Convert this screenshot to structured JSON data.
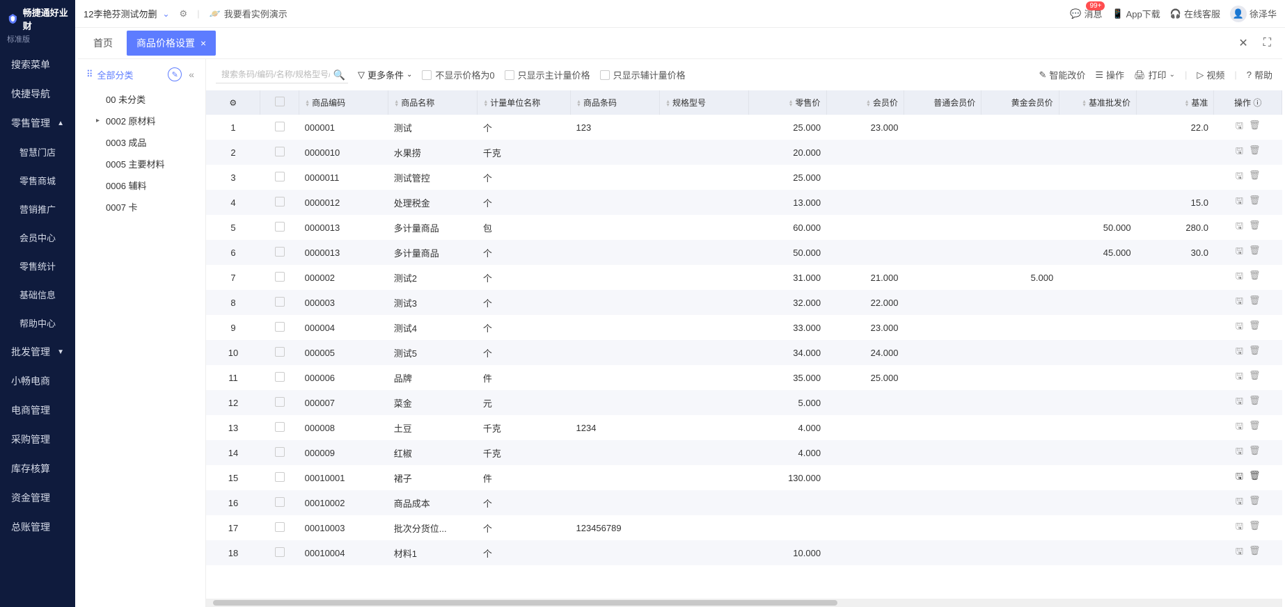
{
  "brand": {
    "name": "畅捷通好业财",
    "edition": "标准版"
  },
  "org": {
    "name": "12李艳芬测试勿删",
    "demo": "我要看实例演示"
  },
  "topActions": {
    "msg": "消息",
    "msgBadge": "99+",
    "app": "App下载",
    "service": "在线客服",
    "user": "徐泽华"
  },
  "sidebar": [
    {
      "label": "搜索菜单"
    },
    {
      "label": "快捷导航"
    },
    {
      "label": "零售管理",
      "caret": "▲"
    },
    {
      "label": "智慧门店",
      "indent": true
    },
    {
      "label": "零售商城",
      "indent": true
    },
    {
      "label": "营销推广",
      "indent": true
    },
    {
      "label": "会员中心",
      "indent": true
    },
    {
      "label": "零售统计",
      "indent": true
    },
    {
      "label": "基础信息",
      "indent": true
    },
    {
      "label": "帮助中心",
      "indent": true
    },
    {
      "label": "批发管理",
      "caret": "▼"
    },
    {
      "label": "小畅电商"
    },
    {
      "label": "电商管理"
    },
    {
      "label": "采购管理"
    },
    {
      "label": "库存核算"
    },
    {
      "label": "资金管理"
    },
    {
      "label": "总账管理"
    }
  ],
  "tabs": {
    "home": "首页",
    "active": "商品价格设置"
  },
  "catPanel": {
    "title": "全部分类",
    "items": [
      {
        "label": "00 未分类"
      },
      {
        "label": "0002 原材料",
        "expandable": true
      },
      {
        "label": "0003 成品"
      },
      {
        "label": "0005 主要材料"
      },
      {
        "label": "0006 辅料"
      },
      {
        "label": "0007 卡"
      }
    ]
  },
  "toolbar": {
    "searchPlaceholder": "搜索条码/编码/名称/规格型号/别名",
    "moreCond": "更多条件",
    "chk1": "不显示价格为0",
    "chk2": "只显示主计量价格",
    "chk3": "只显示辅计量价格",
    "smartPrice": "智能改价",
    "operate": "操作",
    "print": "打印",
    "video": "视频",
    "help": "帮助"
  },
  "columns": {
    "code": "商品编码",
    "name": "商品名称",
    "unit": "计量单位名称",
    "barcode": "商品条码",
    "spec": "规格型号",
    "retail": "零售价",
    "member": "会员价",
    "normalMember": "普通会员价",
    "goldMember": "黄金会员价",
    "baseWholesale": "基准批发价",
    "base": "基准",
    "ops": "操作"
  },
  "rows": [
    {
      "idx": 1,
      "code": "000001",
      "name": "测试",
      "unit": "个",
      "barcode": "123",
      "retail": "25.000",
      "member": "23.000",
      "gold": "",
      "baseW": "",
      "base": "22.0"
    },
    {
      "idx": 2,
      "code": "0000010",
      "name": "水果捞",
      "unit": "千克",
      "barcode": "",
      "retail": "20.000",
      "member": "",
      "gold": "",
      "baseW": "",
      "base": ""
    },
    {
      "idx": 3,
      "code": "0000011",
      "name": "测试管控",
      "unit": "个",
      "barcode": "",
      "retail": "25.000",
      "member": "",
      "gold": "",
      "baseW": "",
      "base": ""
    },
    {
      "idx": 4,
      "code": "0000012",
      "name": "处理税金",
      "unit": "个",
      "barcode": "",
      "retail": "13.000",
      "member": "",
      "gold": "",
      "baseW": "",
      "base": "15.0"
    },
    {
      "idx": 5,
      "code": "0000013",
      "name": "多计量商品",
      "unit": "包",
      "barcode": "",
      "retail": "60.000",
      "member": "",
      "gold": "",
      "baseW": "50.000",
      "base": "280.0"
    },
    {
      "idx": 6,
      "code": "0000013",
      "name": "多计量商品",
      "unit": "个",
      "barcode": "",
      "retail": "50.000",
      "member": "",
      "gold": "",
      "baseW": "45.000",
      "base": "30.0"
    },
    {
      "idx": 7,
      "code": "000002",
      "name": "测试2",
      "unit": "个",
      "barcode": "",
      "retail": "31.000",
      "member": "21.000",
      "gold": "5.000",
      "baseW": "",
      "base": ""
    },
    {
      "idx": 8,
      "code": "000003",
      "name": "测试3",
      "unit": "个",
      "barcode": "",
      "retail": "32.000",
      "member": "22.000",
      "gold": "",
      "baseW": "",
      "base": ""
    },
    {
      "idx": 9,
      "code": "000004",
      "name": "测试4",
      "unit": "个",
      "barcode": "",
      "retail": "33.000",
      "member": "23.000",
      "gold": "",
      "baseW": "",
      "base": ""
    },
    {
      "idx": 10,
      "code": "000005",
      "name": "测试5",
      "unit": "个",
      "barcode": "",
      "retail": "34.000",
      "member": "24.000",
      "gold": "",
      "baseW": "",
      "base": ""
    },
    {
      "idx": 11,
      "code": "000006",
      "name": "品牌",
      "unit": "件",
      "barcode": "",
      "retail": "35.000",
      "member": "25.000",
      "gold": "",
      "baseW": "",
      "base": ""
    },
    {
      "idx": 12,
      "code": "000007",
      "name": "菜金",
      "unit": "元",
      "barcode": "",
      "retail": "5.000",
      "member": "",
      "gold": "",
      "baseW": "",
      "base": ""
    },
    {
      "idx": 13,
      "code": "000008",
      "name": "土豆",
      "unit": "千克",
      "barcode": "1234",
      "retail": "4.000",
      "member": "",
      "gold": "",
      "baseW": "",
      "base": ""
    },
    {
      "idx": 14,
      "code": "000009",
      "name": "红椒",
      "unit": "千克",
      "barcode": "",
      "retail": "4.000",
      "member": "",
      "gold": "",
      "baseW": "",
      "base": ""
    },
    {
      "idx": 15,
      "code": "00010001",
      "name": "裙子",
      "unit": "件",
      "barcode": "",
      "retail": "130.000",
      "member": "",
      "gold": "",
      "baseW": "",
      "base": "",
      "dark": true
    },
    {
      "idx": 16,
      "code": "00010002",
      "name": "商品成本",
      "unit": "个",
      "barcode": "",
      "retail": "",
      "member": "",
      "gold": "",
      "baseW": "",
      "base": ""
    },
    {
      "idx": 17,
      "code": "00010003",
      "name": "批次分货位...",
      "unit": "个",
      "barcode": "123456789",
      "retail": "",
      "member": "",
      "gold": "",
      "baseW": "",
      "base": ""
    },
    {
      "idx": 18,
      "code": "00010004",
      "name": "材料1",
      "unit": "个",
      "barcode": "",
      "retail": "10.000",
      "member": "",
      "gold": "",
      "baseW": "",
      "base": ""
    }
  ]
}
